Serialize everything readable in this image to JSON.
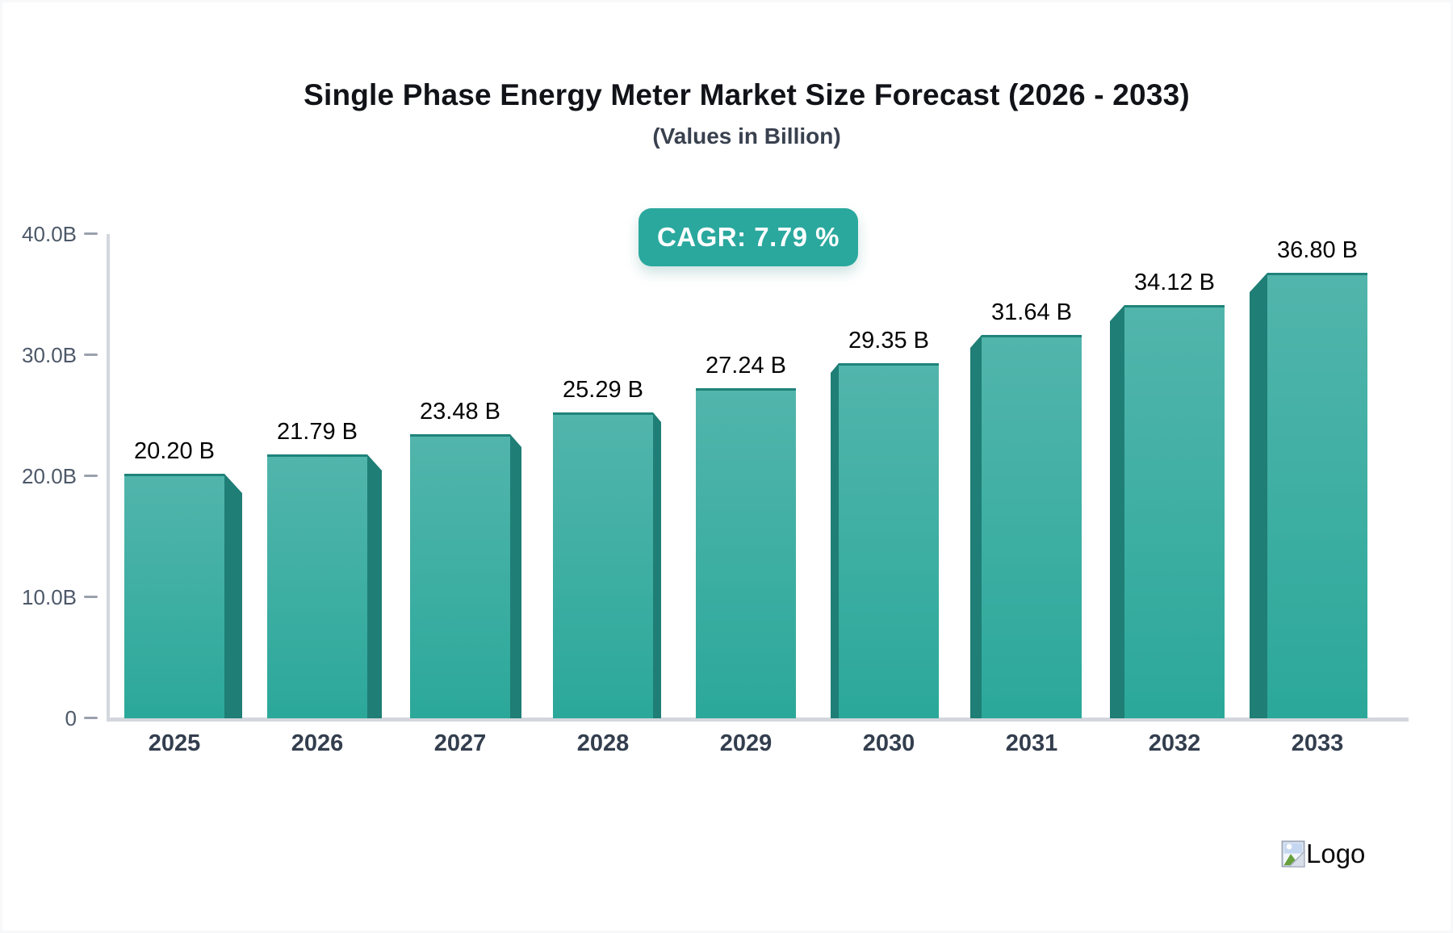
{
  "header": {
    "title": "Single Phase Energy Meter Market Size Forecast (2026 - 2033)",
    "subtitle": "(Values in Billion)"
  },
  "badge": {
    "label": "CAGR: 7.79 %"
  },
  "footer": {
    "logo_text": "Logo"
  },
  "colors": {
    "accent_teal": "#2aa89e",
    "bar_face_top": "#52b5ac",
    "bar_face_bottom": "#2ba89a",
    "bar_side": "#1f7e75",
    "bar_top_edge": "#1f837a",
    "axis_line": "#d3d7dd",
    "tick_mark": "#9aa1ad",
    "y_label": "#4d5869",
    "x_label": "#333e4e",
    "value_label": "#050505",
    "subtitle": "#39414f",
    "title": "#111318"
  },
  "chart_data": {
    "type": "bar",
    "title": "Single Phase Energy Meter Market Size Forecast (2026 - 2033)",
    "subtitle": "(Values in Billion)",
    "annotation": "CAGR: 7.79 %",
    "categories": [
      "2025",
      "2026",
      "2027",
      "2028",
      "2029",
      "2030",
      "2031",
      "2032",
      "2033"
    ],
    "values": [
      20.2,
      21.79,
      23.48,
      25.29,
      27.24,
      29.35,
      31.64,
      34.12,
      36.8
    ],
    "value_labels": [
      "20.20 B",
      "21.79 B",
      "23.48 B",
      "25.29 B",
      "27.24 B",
      "29.35 B",
      "31.64 B",
      "34.12 B",
      "36.80 B"
    ],
    "yticks": [
      {
        "label": "40.0B",
        "value": 40
      },
      {
        "label": "30.0B",
        "value": 30
      },
      {
        "label": "20.0B",
        "value": 20
      },
      {
        "label": "10.0B",
        "value": 10
      },
      {
        "label": "0",
        "value": 0
      }
    ],
    "ylim": [
      0,
      40
    ],
    "xlabel": "",
    "ylabel": "",
    "grid": false,
    "legend": false,
    "bar_style": "3d-teal"
  }
}
